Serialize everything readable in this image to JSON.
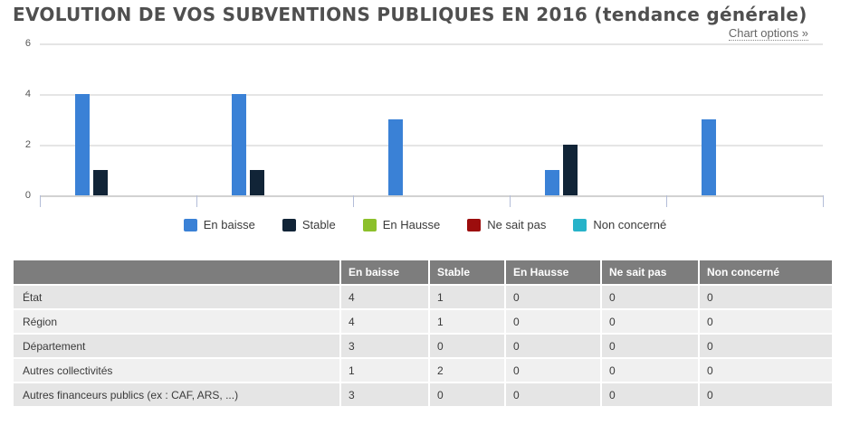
{
  "header": {
    "chart_options_label": "Chart options »"
  },
  "chart_data": {
    "type": "bar",
    "title": "EVOLUTION DE VOS SUBVENTIONS PUBLIQUES EN 2016 (tendance générale)",
    "categories": [
      "État",
      "Région",
      "Département",
      "Autres collectivités",
      "Autres financeurs publics (ex : CAF, ARS, ...)"
    ],
    "series": [
      {
        "name": "En baisse",
        "color": "#3a81d6",
        "values": [
          4,
          4,
          3,
          1,
          3
        ]
      },
      {
        "name": "Stable",
        "color": "#112437",
        "values": [
          1,
          1,
          0,
          2,
          0
        ]
      },
      {
        "name": "En Hausse",
        "color": "#8cc02b",
        "values": [
          0,
          0,
          0,
          0,
          0
        ]
      },
      {
        "name": "Ne sait pas",
        "color": "#9c0d0d",
        "values": [
          0,
          0,
          0,
          0,
          0
        ]
      },
      {
        "name": "Non concerné",
        "color": "#27b3c9",
        "values": [
          0,
          0,
          0,
          0,
          0
        ]
      }
    ],
    "xlabel": "",
    "ylabel": "",
    "ylim": [
      0,
      6
    ],
    "yticks": [
      0,
      2,
      4,
      6
    ],
    "grid": true,
    "legend_position": "bottom"
  },
  "table": {
    "headers": [
      "",
      "En baisse",
      "Stable",
      "En Hausse",
      "Ne sait pas",
      "Non concerné"
    ],
    "rows": [
      {
        "label": "État",
        "values": [
          4,
          1,
          0,
          0,
          0
        ]
      },
      {
        "label": "Région",
        "values": [
          4,
          1,
          0,
          0,
          0
        ]
      },
      {
        "label": "Département",
        "values": [
          3,
          0,
          0,
          0,
          0
        ]
      },
      {
        "label": "Autres collectivités",
        "values": [
          1,
          2,
          0,
          0,
          0
        ]
      },
      {
        "label": "Autres financeurs publics (ex : CAF, ARS, ...)",
        "values": [
          3,
          0,
          0,
          0,
          0
        ]
      }
    ]
  }
}
